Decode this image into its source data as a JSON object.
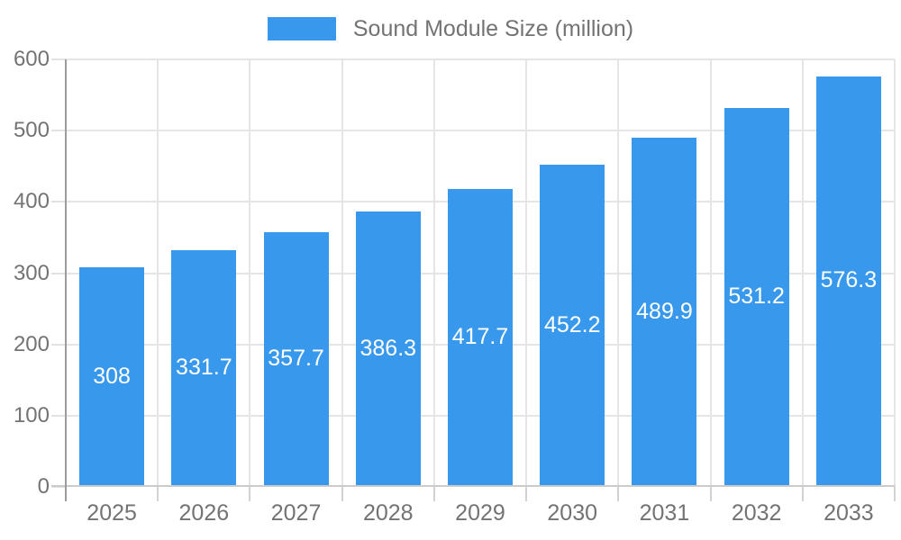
{
  "chart_data": {
    "type": "bar",
    "series_name": "Sound Module Size (million)",
    "categories": [
      "2025",
      "2026",
      "2027",
      "2028",
      "2029",
      "2030",
      "2031",
      "2032",
      "2033"
    ],
    "values": [
      308,
      331.7,
      357.7,
      386.3,
      417.7,
      452.2,
      489.9,
      531.2,
      576.3
    ],
    "value_labels": [
      "308",
      "331.7",
      "357.7",
      "386.3",
      "417.7",
      "452.2",
      "489.9",
      "531.2",
      "576.3"
    ],
    "yticks": [
      0,
      100,
      200,
      300,
      400,
      500,
      600
    ],
    "ylim": [
      0,
      600
    ],
    "xlabel": "",
    "ylabel": "",
    "grid": true,
    "legend_position": "top-center",
    "bar_color": "#3899ec",
    "value_label_color": "#ffffff",
    "axis_text_color": "#737373"
  }
}
